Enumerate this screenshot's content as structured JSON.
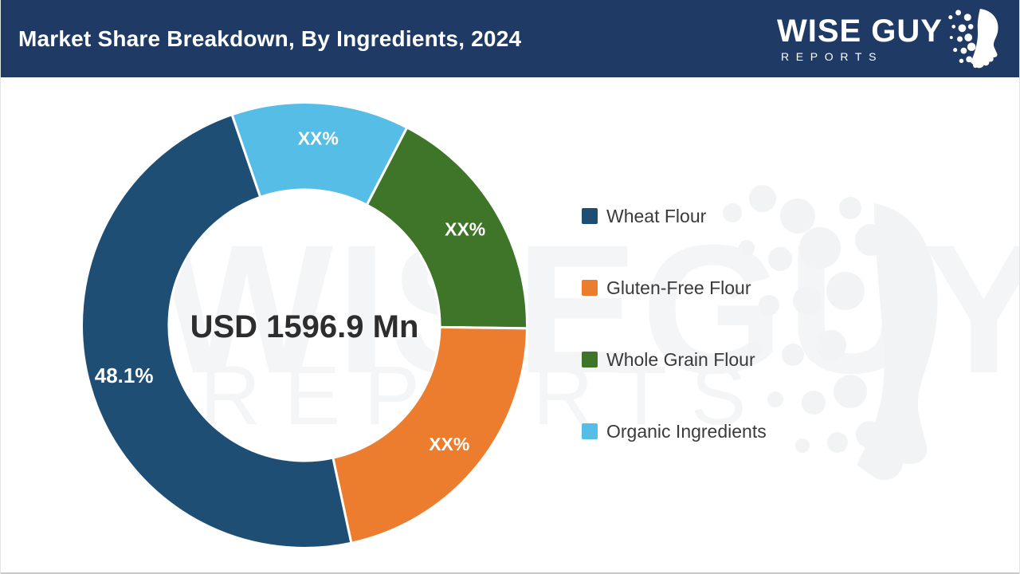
{
  "header": {
    "title": "Market Share Breakdown, By Ingredients, 2024",
    "bg_color": "#1f3a64",
    "logo": {
      "wordmark": "WISE GUY",
      "subtext": "REPORTS"
    }
  },
  "watermark": {
    "line1": "WISEGUY",
    "line2": "REPORTS"
  },
  "chart_data": {
    "type": "pie",
    "subtype": "donut",
    "title": "Market Share Breakdown, By Ingredients, 2024",
    "center_label": "USD 1596.9 Mn",
    "unit": "percent",
    "segments": [
      {
        "label": "Wheat Flour",
        "value": 48.1,
        "display": "48.1%",
        "color": "#1f4e74"
      },
      {
        "label": "Gluten-Free Flour",
        "value": 21.4,
        "display": "XX%",
        "color": "#ec7d2f"
      },
      {
        "label": "Whole Grain Flour",
        "value": 17.6,
        "display": "XX%",
        "color": "#3e7529"
      },
      {
        "label": "Organic Ingredients",
        "value": 12.9,
        "display": "XX%",
        "color": "#55bde6"
      }
    ],
    "layout": {
      "start_angle_deg": -19,
      "draw_order": [
        3,
        2,
        1,
        0
      ],
      "donut_hole_ratio": 0.6,
      "legend_position": "right",
      "labels": "inside-slices"
    }
  }
}
